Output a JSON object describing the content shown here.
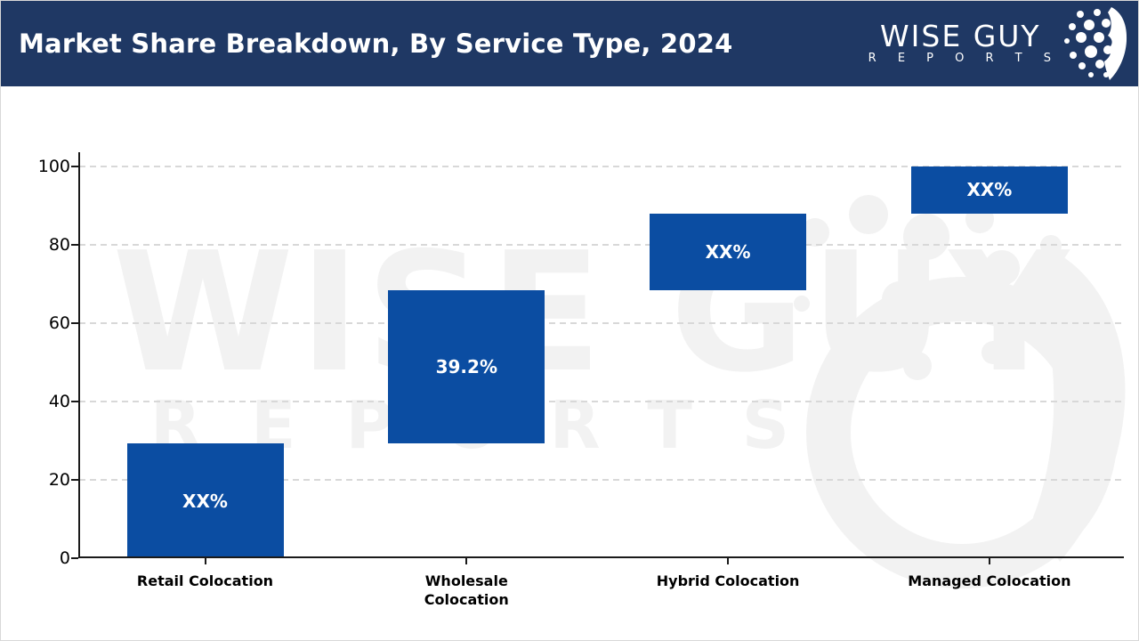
{
  "header": {
    "title": "Market Share Breakdown, By Service Type, 2024",
    "logo": {
      "wordmark": "WISE GUY",
      "subtitle": "R E P O R T S"
    },
    "background_color": "#1F3864",
    "text_color": "#FFFFFF"
  },
  "watermark": {
    "wordmark": "WISE GUY",
    "subtitle": "REPORTS",
    "color": "#F2F2F2"
  },
  "chart_data": {
    "type": "bar",
    "subtype": "floating-waterfall",
    "title": "Market Share Breakdown, By Service Type, 2024",
    "xlabel": "",
    "ylabel": "",
    "ylim": [
      0,
      100
    ],
    "yticks": [
      0,
      20,
      40,
      60,
      80,
      100
    ],
    "grid": "horizontal-dashed",
    "legend": "none",
    "bar_color": "#0B4DA2",
    "bar_label_color": "#FFFFFF",
    "gridline_color": "#D8D8D8",
    "axis_color": "#1A1A1A",
    "categories": [
      "Retail Colocation",
      "Wholesale Colocation",
      "Hybrid Colocation",
      "Managed Colocation"
    ],
    "category_label_lines": [
      [
        "Retail Colocation"
      ],
      [
        "Wholesale",
        "Colocation"
      ],
      [
        "Hybrid Colocation"
      ],
      [
        "Managed Colocation"
      ]
    ],
    "segments": [
      {
        "category": "Retail Colocation",
        "base": 0,
        "top": 29.3,
        "label": "XX%"
      },
      {
        "category": "Wholesale Colocation",
        "base": 29.3,
        "top": 68.5,
        "label": "39.2%",
        "value": 39.2
      },
      {
        "category": "Hybrid Colocation",
        "base": 68.5,
        "top": 88,
        "label": "XX%"
      },
      {
        "category": "Managed Colocation",
        "base": 88,
        "top": 100,
        "label": "XX%"
      }
    ]
  }
}
